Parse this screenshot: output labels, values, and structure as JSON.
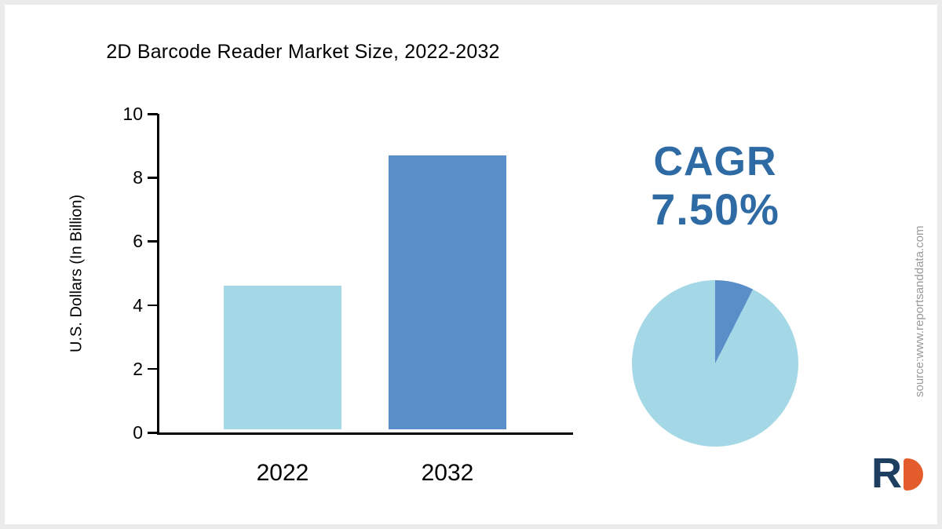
{
  "title": "2D Barcode Reader Market Size, 2022-2032",
  "chart_data": {
    "type": "bar",
    "title": "2D Barcode Reader Market Size, 2022-2032",
    "categories": [
      "2022",
      "2032"
    ],
    "values": [
      4.5,
      8.6
    ],
    "xlabel": "",
    "ylabel": "U.S. Dollars (In Billion)",
    "ylim": [
      0,
      10
    ],
    "yticks": [
      0,
      2,
      4,
      6,
      8,
      10
    ],
    "bar_colors": [
      "#a5d8e6",
      "#5a8ec8"
    ],
    "grid": false,
    "legend": "none"
  },
  "cagr": {
    "label": "CAGR",
    "value": "7.50%",
    "percent": 7.5,
    "color": "#2e6ba4"
  },
  "pie": {
    "slice_percent": 7.5,
    "slice_color": "#5a8ec8",
    "rest_color": "#a5d8e6"
  },
  "source": "source:www.reportsanddata.com",
  "logo": {
    "letter": "R",
    "letter_color": "#1d3e5f",
    "dot_color": "#e55c2c"
  }
}
